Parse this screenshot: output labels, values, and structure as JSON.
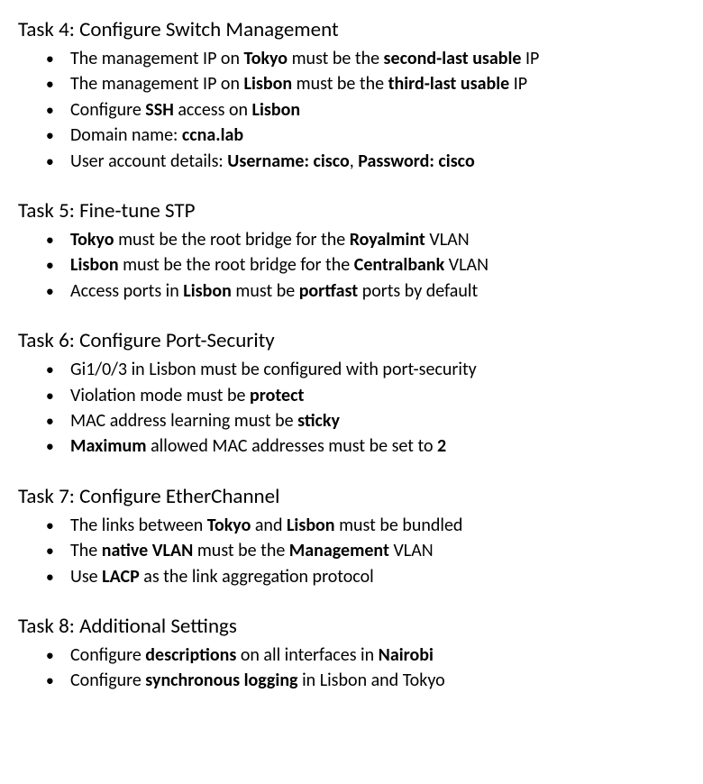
{
  "tasks": [
    {
      "title": "Task 4: Configure Switch Management",
      "items": [
        [
          {
            "t": "The management IP on "
          },
          {
            "t": "Tokyo",
            "b": true
          },
          {
            "t": " must be the "
          },
          {
            "t": "second-last usable",
            "b": true
          },
          {
            "t": " IP"
          }
        ],
        [
          {
            "t": "The management IP on "
          },
          {
            "t": "Lisbon",
            "b": true
          },
          {
            "t": " must be the "
          },
          {
            "t": "third-last usable",
            "b": true
          },
          {
            "t": " IP"
          }
        ],
        [
          {
            "t": "Configure "
          },
          {
            "t": "SSH",
            "b": true
          },
          {
            "t": " access on "
          },
          {
            "t": "Lisbon",
            "b": true
          }
        ],
        [
          {
            "t": "Domain name: "
          },
          {
            "t": "ccna.lab",
            "b": true
          }
        ],
        [
          {
            "t": "User account details: "
          },
          {
            "t": "Username: cisco",
            "b": true
          },
          {
            "t": ", "
          },
          {
            "t": "Password: cisco",
            "b": true
          }
        ]
      ]
    },
    {
      "title": "Task 5: Fine-tune STP",
      "items": [
        [
          {
            "t": "Tokyo",
            "b": true
          },
          {
            "t": " must be the root bridge for the "
          },
          {
            "t": "Royalmint",
            "b": true
          },
          {
            "t": " VLAN"
          }
        ],
        [
          {
            "t": "Lisbon",
            "b": true
          },
          {
            "t": " must be the root bridge for the "
          },
          {
            "t": "Centralbank",
            "b": true
          },
          {
            "t": " VLAN"
          }
        ],
        [
          {
            "t": "Access ports in "
          },
          {
            "t": "Lisbon",
            "b": true
          },
          {
            "t": " must be "
          },
          {
            "t": "portfast",
            "b": true
          },
          {
            "t": " ports by default"
          }
        ]
      ]
    },
    {
      "title": "Task 6: Configure Port-Security",
      "items": [
        [
          {
            "t": "Gi1/0/3 in Lisbon must be configured with port-security"
          }
        ],
        [
          {
            "t": "Violation mode must be "
          },
          {
            "t": "protect",
            "b": true
          }
        ],
        [
          {
            "t": "MAC address learning must be "
          },
          {
            "t": "sticky",
            "b": true
          }
        ],
        [
          {
            "t": "Maximum",
            "b": true
          },
          {
            "t": " allowed MAC addresses must be set to "
          },
          {
            "t": "2",
            "b": true
          }
        ]
      ]
    },
    {
      "title": "Task 7: Configure EtherChannel",
      "items": [
        [
          {
            "t": "The links between "
          },
          {
            "t": "Tokyo",
            "b": true
          },
          {
            "t": " and "
          },
          {
            "t": "Lisbon",
            "b": true
          },
          {
            "t": " must be bundled"
          }
        ],
        [
          {
            "t": "The "
          },
          {
            "t": "native VLAN",
            "b": true
          },
          {
            "t": " must be the "
          },
          {
            "t": "Management",
            "b": true
          },
          {
            "t": " VLAN"
          }
        ],
        [
          {
            "t": "Use "
          },
          {
            "t": "LACP",
            "b": true
          },
          {
            "t": " as the link aggregation protocol"
          }
        ]
      ]
    },
    {
      "title": "Task 8: Additional Settings",
      "items": [
        [
          {
            "t": "Configure "
          },
          {
            "t": "descriptions",
            "b": true
          },
          {
            "t": " on all interfaces in "
          },
          {
            "t": "Nairobi",
            "b": true
          }
        ],
        [
          {
            "t": "Configure "
          },
          {
            "t": "synchronous logging",
            "b": true
          },
          {
            "t": " in Lisbon and Tokyo"
          }
        ]
      ]
    }
  ]
}
